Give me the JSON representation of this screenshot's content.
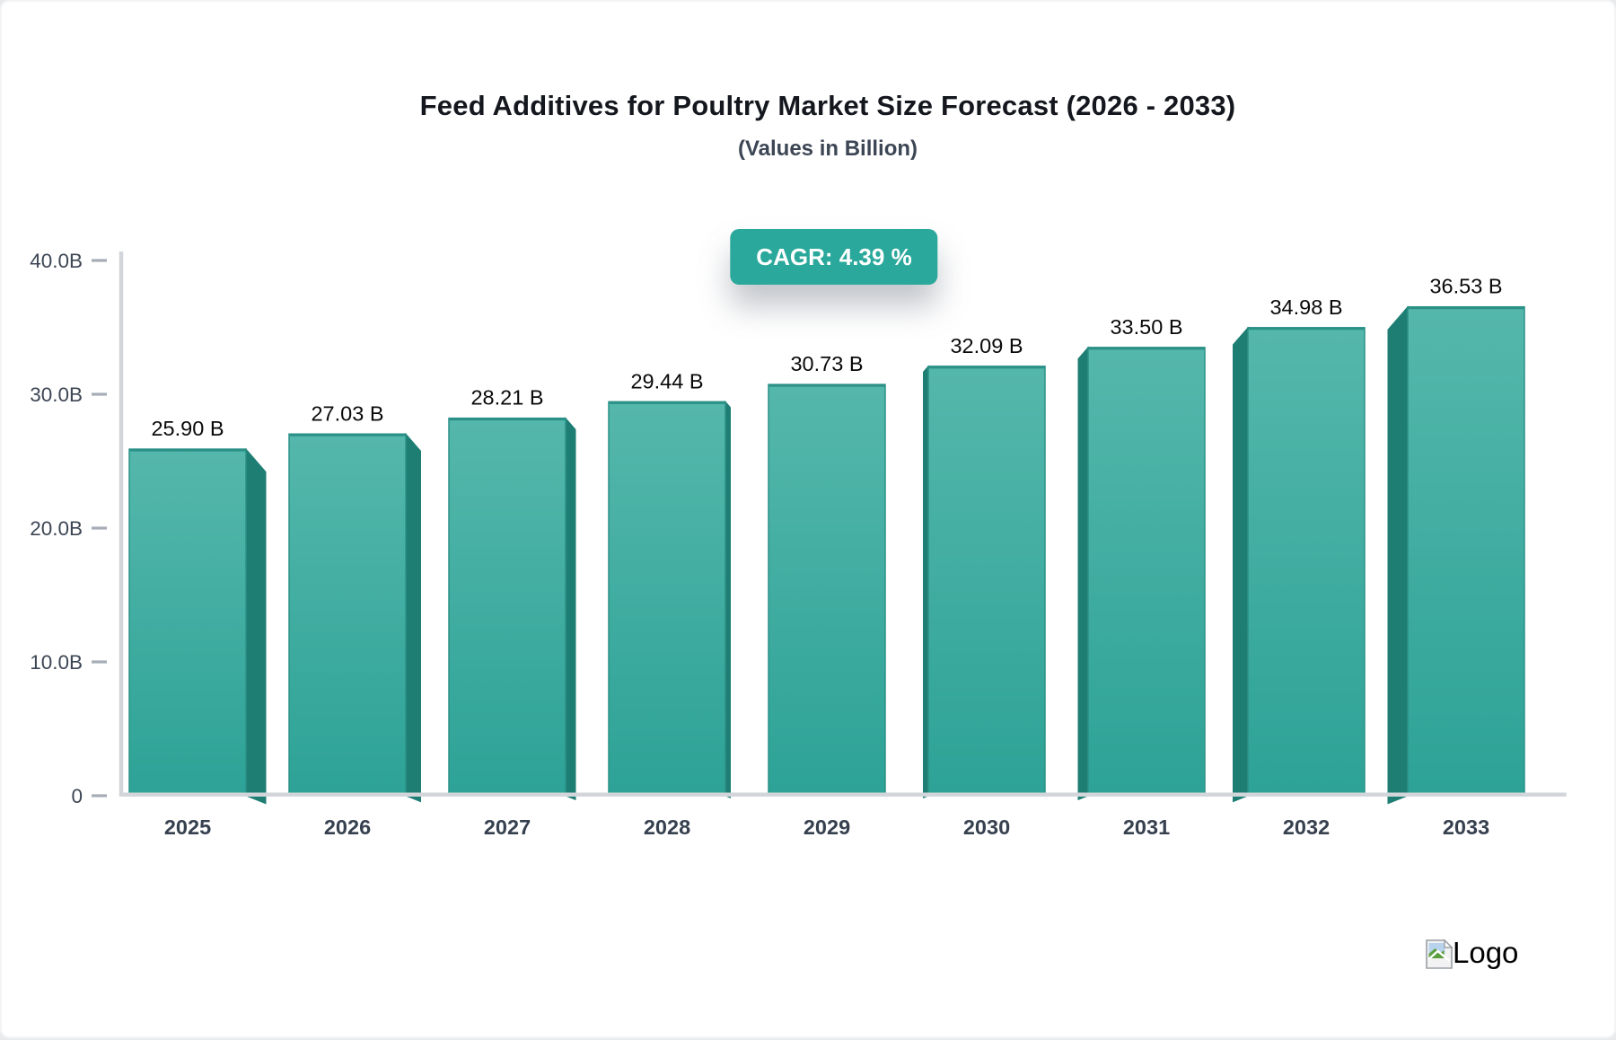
{
  "page": {
    "header": {
      "title": "Feed Additives for Poultry Market Size Forecast (2026 - 2033)",
      "subtitle": "(Values in Billion)"
    }
  },
  "logo": {
    "alt_text": "Logo",
    "icon": "broken-image-icon"
  },
  "chart_data": {
    "type": "bar",
    "title": "Feed Additives for Poultry Market Size Forecast (2026 - 2033)",
    "subtitle": "(Values in Billion)",
    "cagr_badge": "CAGR: 4.39 %",
    "categories": [
      "2025",
      "2026",
      "2027",
      "2028",
      "2029",
      "2030",
      "2031",
      "2032",
      "2033"
    ],
    "values": [
      25.9,
      27.03,
      28.21,
      29.44,
      30.73,
      32.09,
      33.5,
      34.98,
      36.53
    ],
    "value_labels": [
      "25.90 B",
      "27.03 B",
      "28.21 B",
      "29.44 B",
      "30.73 B",
      "32.09 B",
      "33.50 B",
      "34.98 B",
      "36.53 B"
    ],
    "xlabel": "",
    "ylabel": "",
    "ylim": [
      0,
      40
    ],
    "ytick_values": [
      0,
      10,
      20,
      30,
      40
    ],
    "ytick_labels": [
      "0",
      "10.0B",
      "20.0B",
      "30.0B",
      "40.0B"
    ],
    "grid": false,
    "legend": false,
    "style": "3d-column",
    "colors": {
      "bar_top": "#55b7ac",
      "bar_bottom": "#2da296",
      "bar_side": "#1f7e74",
      "bar_edge": "#2b9187",
      "badge_bg": "#2aa89b",
      "axis_line": "#d2d6da",
      "tick_dash": "#a6adb6",
      "value_label": "#0a0a0a",
      "axis_label": "#3d4654",
      "year_label": "#36404f"
    }
  }
}
